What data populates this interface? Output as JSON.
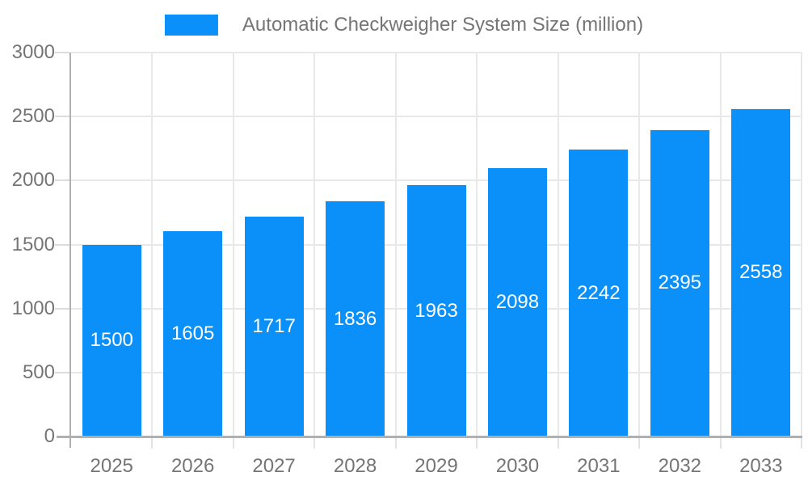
{
  "legend": {
    "label": "Automatic Checkweigher System Size (million)",
    "swatch_color": "#0a90f8"
  },
  "chart_data": {
    "type": "bar",
    "title": "",
    "xlabel": "",
    "ylabel": "",
    "categories": [
      "2025",
      "2026",
      "2027",
      "2028",
      "2029",
      "2030",
      "2031",
      "2032",
      "2033"
    ],
    "series": [
      {
        "name": "Automatic Checkweigher System Size (million)",
        "values": [
          1500,
          1605,
          1717,
          1836,
          1963,
          2098,
          2242,
          2395,
          2558
        ]
      }
    ],
    "bar_labels": [
      "1500",
      "1605",
      "1717",
      "1836",
      "1963",
      "2098",
      "2242",
      "2395",
      "2558"
    ],
    "ylim": [
      0,
      3000
    ],
    "y_ticks": [
      0,
      500,
      1000,
      1500,
      2000,
      2500,
      3000
    ],
    "y_tick_labels": [
      "0",
      "500",
      "1000",
      "1500",
      "2000",
      "2500",
      "3000"
    ],
    "grid": true,
    "legend_position": "top",
    "colors": {
      "bar": "#0a90f8",
      "bar_label_text": "#ffffff",
      "axis_text": "#757575",
      "grid_line": "#e8e8e8",
      "axis_line": "#b0b0b0",
      "background": "#ffffff"
    }
  }
}
